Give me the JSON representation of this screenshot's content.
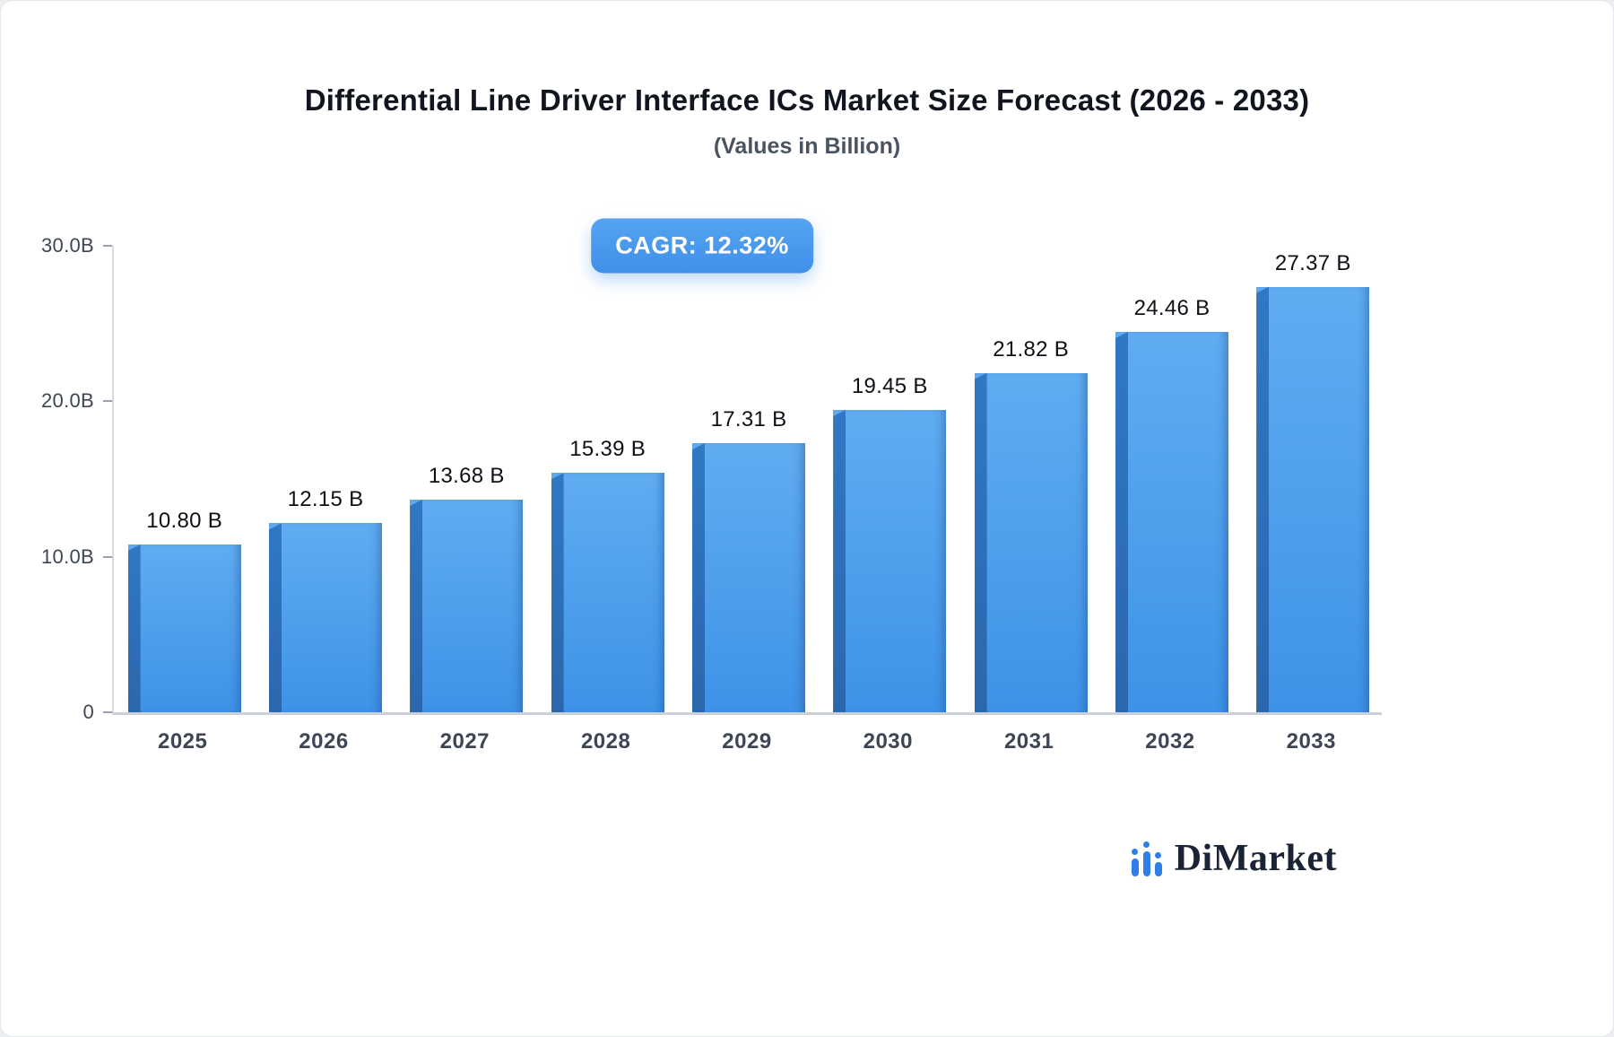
{
  "title": "Differential Line Driver Interface ICs Market Size Forecast (2026 - 2033)",
  "subtitle": "(Values in Billion)",
  "badge": {
    "label": "CAGR: 12.32%"
  },
  "brand": {
    "name": "DiMarket",
    "icon": "bar-chart-icon",
    "accent_color": "#2e7fe8",
    "text_color": "#1b2336"
  },
  "colors": {
    "bar_front": "#3e92e7",
    "bar_front_light": "#60acf1",
    "bar_side_dark": "#2b67ad",
    "badge_bg": "#3f90ea",
    "axis_line": "#ccd1d7",
    "label_text": "#3d4654"
  },
  "chart_data": {
    "type": "bar",
    "title": "Differential Line Driver Interface ICs Market Size Forecast (2026 - 2033)",
    "subtitle": "(Values in Billion)",
    "annotation": "CAGR: 12.32%",
    "categories": [
      "2025",
      "2026",
      "2027",
      "2028",
      "2029",
      "2030",
      "2031",
      "2032",
      "2033"
    ],
    "values": [
      10.8,
      12.15,
      13.68,
      15.39,
      17.31,
      19.45,
      21.82,
      24.46,
      27.37
    ],
    "value_labels": [
      "10.80 B",
      "12.15 B",
      "13.68 B",
      "15.39 B",
      "17.31 B",
      "19.45 B",
      "21.82 B",
      "24.46 B",
      "27.37 B"
    ],
    "xlabel": "",
    "ylabel": "",
    "ylim": [
      0,
      30
    ],
    "yticks": [
      {
        "label": "30.0B",
        "value": 30
      },
      {
        "label": "20.0B",
        "value": 20
      },
      {
        "label": "10.0B",
        "value": 10
      },
      {
        "label": "0",
        "value": 0
      }
    ],
    "grid": false,
    "legend": false
  }
}
